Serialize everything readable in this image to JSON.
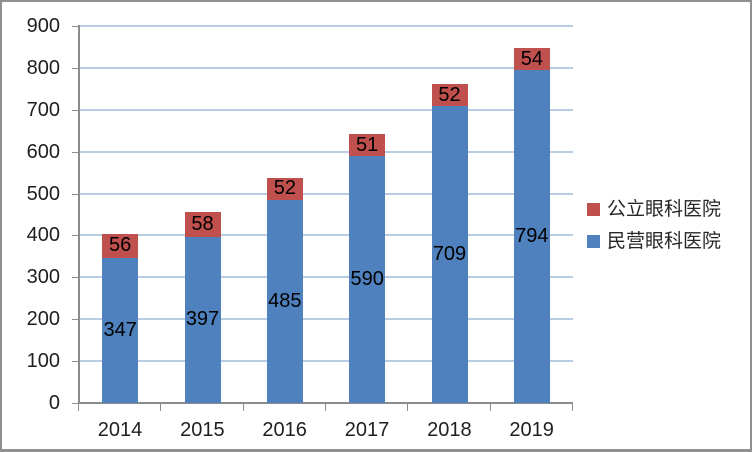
{
  "chart_data": {
    "type": "bar",
    "stacked": true,
    "title": "",
    "xlabel": "",
    "ylabel": "",
    "categories": [
      "2014",
      "2015",
      "2016",
      "2017",
      "2018",
      "2019"
    ],
    "series": [
      {
        "name": "民营眼科医院",
        "color": "#4e81bd",
        "values": [
          347,
          397,
          485,
          590,
          709,
          794
        ]
      },
      {
        "name": "公立眼科医院",
        "color": "#c0504d",
        "values": [
          56,
          58,
          52,
          51,
          52,
          54
        ]
      }
    ],
    "data_labels_shown": true,
    "ylim": [
      0,
      900
    ],
    "ytick_step": 100,
    "ytick_labels": [
      "0",
      "100",
      "200",
      "300",
      "400",
      "500",
      "600",
      "700",
      "800",
      "900"
    ],
    "grid": true,
    "gridline_color": "#b8cce4",
    "axis_color": "#8c8c8c",
    "legend_position": "right",
    "legend": [
      {
        "label": "公立眼科医院",
        "color": "#c0504d"
      },
      {
        "label": "民营眼科医院",
        "color": "#4e81bd"
      }
    ]
  }
}
